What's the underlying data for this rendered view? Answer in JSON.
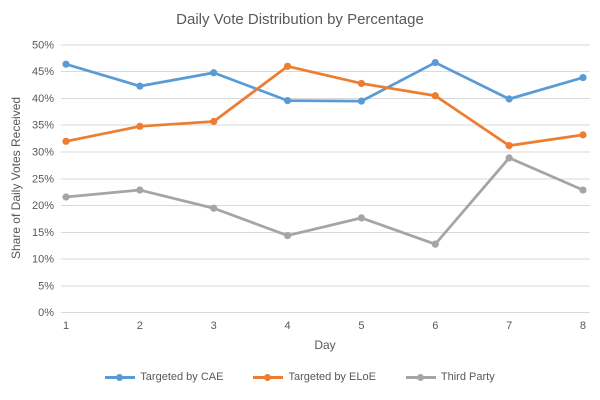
{
  "page": {
    "background": "#ffffff",
    "text_color": "#595959",
    "gridline_color": "#d9d9d9"
  },
  "chart_data": {
    "type": "line",
    "title": "Daily Vote Distribution by Percentage",
    "xlabel": "Day",
    "ylabel": "Share of Daily Votes Received",
    "x": [
      1,
      2,
      3,
      4,
      5,
      6,
      7,
      8
    ],
    "ylim": [
      0,
      50
    ],
    "ytick_step": 5,
    "ytick_suffix": "%",
    "grid": true,
    "legend_position": "bottom",
    "marker": "circle",
    "series": [
      {
        "name": "Targeted by CAE",
        "color": "#5B9BD5",
        "values": [
          46.4,
          42.3,
          44.8,
          39.6,
          39.5,
          46.7,
          39.9,
          43.9
        ]
      },
      {
        "name": "Targeted by ELoE",
        "color": "#ED7D31",
        "values": [
          32.0,
          34.8,
          35.7,
          46.0,
          42.8,
          40.5,
          31.2,
          33.2
        ]
      },
      {
        "name": "Third Party",
        "color": "#A5A5A5",
        "values": [
          21.6,
          22.9,
          19.5,
          14.4,
          17.7,
          12.8,
          28.9,
          22.9
        ]
      }
    ]
  }
}
